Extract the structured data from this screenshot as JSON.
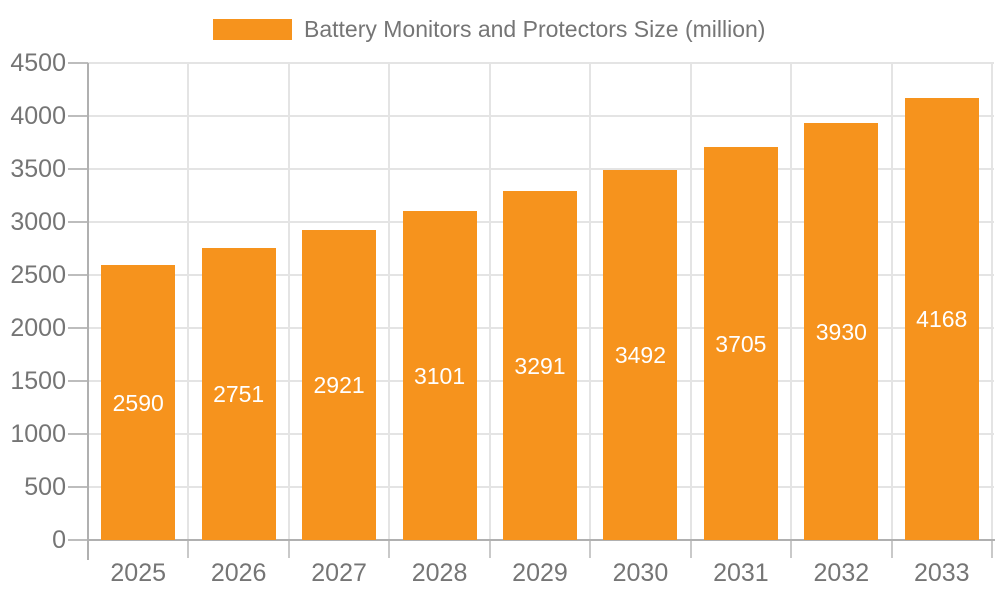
{
  "chart_data": {
    "type": "bar",
    "title": "Battery Monitors and Protectors Size (million)",
    "categories": [
      "2025",
      "2026",
      "2027",
      "2028",
      "2029",
      "2030",
      "2031",
      "2032",
      "2033"
    ],
    "values": [
      2590,
      2751,
      2921,
      3101,
      3291,
      3492,
      3705,
      3930,
      4168
    ],
    "series_name": "Battery Monitors and Protectors Size (million)",
    "xlabel": "",
    "ylabel": "",
    "ylim": [
      0,
      4500
    ],
    "ytick_step": 500,
    "yticks": [
      0,
      500,
      1000,
      1500,
      2000,
      2500,
      3000,
      3500,
      4000,
      4500
    ],
    "grid": true,
    "legend_position": "top",
    "value_labels": "inside-center",
    "colors": {
      "bar": "#f6931d",
      "grid": "#e4e4e4",
      "axis": "#b0b0b0",
      "tick": "#bdbdbd",
      "axis_text": "#757575",
      "value_label_text": "#ffffff",
      "background": "#ffffff"
    }
  }
}
